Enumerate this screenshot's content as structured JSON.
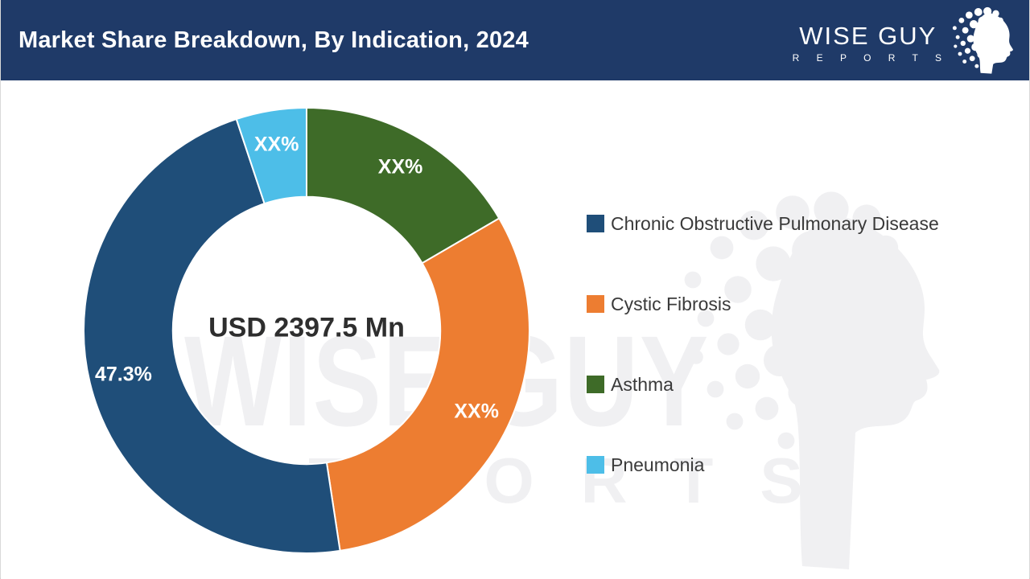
{
  "header": {
    "title": "Market Share Breakdown, By Indication, 2024",
    "bg_color": "#1f3a68",
    "logo": {
      "line1": "WISE GUY",
      "line2": "R E P O R T S"
    }
  },
  "chart_data": {
    "type": "donut",
    "center_label": "USD 2397.5 Mn",
    "direction": "clockwise",
    "start_angle_deg": 0,
    "inner_radius_ratio": 0.6,
    "slices": [
      {
        "name": "Asthma",
        "label": "XX%",
        "percent": 16.6,
        "color": "#3e6b28"
      },
      {
        "name": "Cystic Fibrosis",
        "label": "XX%",
        "percent": 31.0,
        "color": "#ed7d31"
      },
      {
        "name": "Chronic Obstructive Pulmonary Disease",
        "label": "47.3%",
        "percent": 47.3,
        "color": "#1f4e79"
      },
      {
        "name": "Pneumonia",
        "label": "XX%",
        "percent": 5.1,
        "color": "#4dbee8"
      }
    ],
    "legend_position": "right"
  },
  "legend": {
    "items": [
      {
        "label": "Chronic Obstructive Pulmonary Disease",
        "color": "#1f4e79"
      },
      {
        "label": "Cystic Fibrosis",
        "color": "#ed7d31"
      },
      {
        "label": "Asthma",
        "color": "#3e6b28"
      },
      {
        "label": "Pneumonia",
        "color": "#4dbee8"
      }
    ]
  },
  "watermark": {
    "line1": "WISE GUY",
    "line2": "REPORTS"
  }
}
